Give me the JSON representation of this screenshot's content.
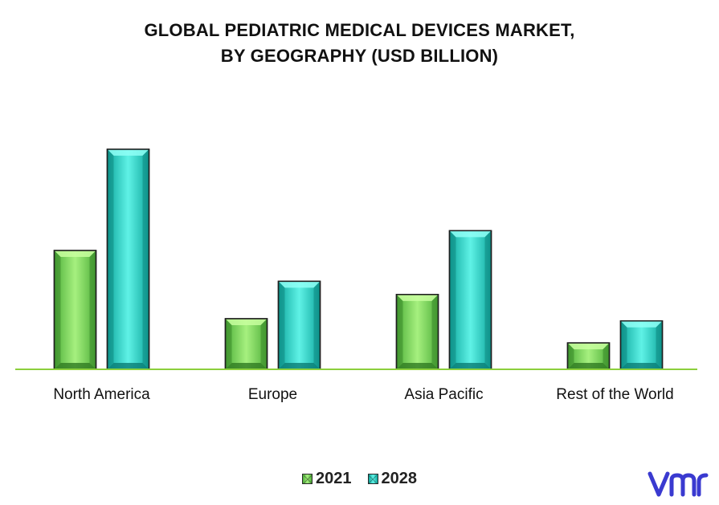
{
  "chart_data": {
    "type": "bar",
    "title_lines": [
      "GLOBAL PEDIATRIC MEDICAL DEVICES MARKET,",
      "BY GEOGRAPHY (USD BILLION)"
    ],
    "categories": [
      "North America",
      "Europe",
      "Asia Pacific",
      "Rest of the World"
    ],
    "series": [
      {
        "name": "2021",
        "values": [
          5.4,
          2.3,
          3.4,
          1.2
        ],
        "color": "#7ee060"
      },
      {
        "name": "2028",
        "values": [
          10.0,
          4.0,
          6.3,
          2.2
        ],
        "color": "#22d4c8"
      }
    ],
    "ylim": [
      0,
      10.8
    ],
    "grid": false,
    "legend_position": "bottom-center",
    "axis_color": "#8ccf3c"
  },
  "brand": {
    "logo_icon": "vmr-logo-icon",
    "logo_color": "#3a3ad0"
  }
}
